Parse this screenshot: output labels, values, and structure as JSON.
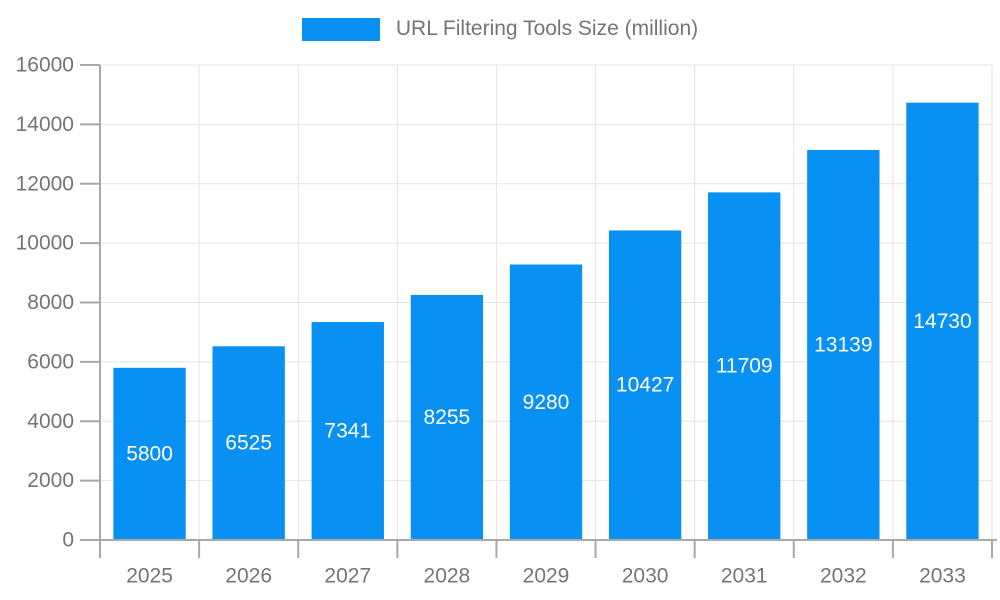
{
  "chart_data": {
    "type": "bar",
    "title": "URL Filtering Tools Size (million)",
    "legend": [
      "URL Filtering Tools Size (million)"
    ],
    "legend_position": "top-center",
    "categories": [
      "2025",
      "2026",
      "2027",
      "2028",
      "2029",
      "2030",
      "2031",
      "2032",
      "2033"
    ],
    "values": [
      5800,
      6525,
      7341,
      8255,
      9280,
      10427,
      11709,
      13139,
      14730
    ],
    "xlabel": "",
    "ylabel": "",
    "ylim": [
      0,
      16000
    ],
    "ytick_step": 2000,
    "grid": true,
    "value_labels": "inside-center-white",
    "colors": {
      "bar": "#0890F3",
      "grid": "#E4E4E4",
      "axis": "#A8A8A8",
      "axis_label": "#757575",
      "data_label": "#FFFFFF",
      "background": "#FFFFFF"
    }
  }
}
